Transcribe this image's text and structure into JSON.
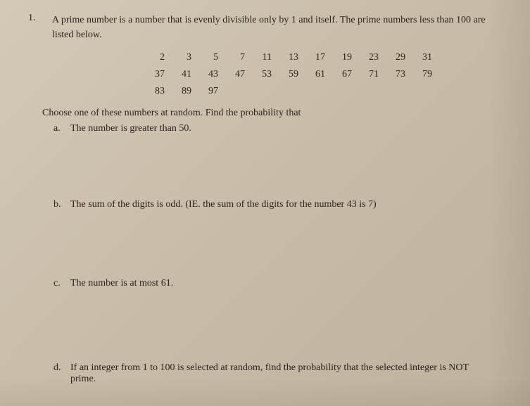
{
  "question": {
    "number": "1.",
    "intro": "A prime number is a number that is evenly divisible only by 1 and itself. The prime numbers less than 100 are listed below.",
    "primes": [
      [
        "2",
        "3",
        "5",
        "7",
        "11",
        "13",
        "17",
        "19",
        "23",
        "29",
        "31"
      ],
      [
        "37",
        "41",
        "43",
        "47",
        "53",
        "59",
        "61",
        "67",
        "71",
        "73",
        "79"
      ],
      [
        "83",
        "89",
        "97"
      ]
    ],
    "instruction": "Choose one of these numbers at random. Find the probability that",
    "parts": {
      "a": {
        "letter": "a.",
        "text": "The number is greater than 50."
      },
      "b": {
        "letter": "b.",
        "text": "The sum of the digits is odd. (IE. the sum of the digits for the number 43 is 7)"
      },
      "c": {
        "letter": "c.",
        "text": "The number is at most 61."
      },
      "d": {
        "letter": "d.",
        "text": "If an integer from 1 to 100 is selected at random, find the probability that the selected integer is NOT prime."
      }
    }
  },
  "style": {
    "font_family": "Georgia, Times New Roman, serif",
    "font_size_pt": 14,
    "text_color": "#2a2520",
    "bg_gradient": [
      "#d4c9b8",
      "#c8bca8",
      "#bfb39e"
    ]
  }
}
